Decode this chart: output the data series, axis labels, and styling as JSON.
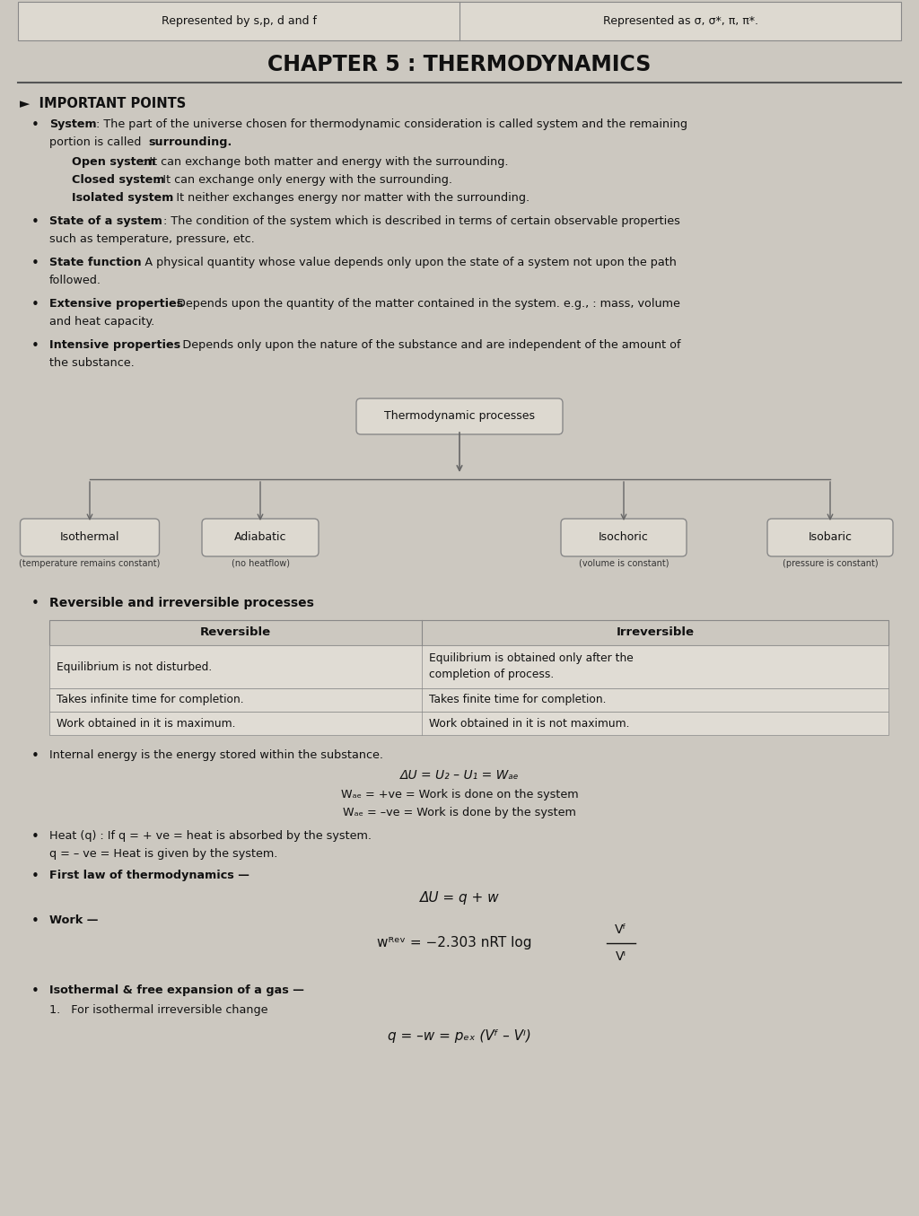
{
  "bg_color": "#ccc8c0",
  "page_bg": "#e8e4dc",
  "text_color": "#111111",
  "title": "CHAPTER 5 : THERMODYNAMICS",
  "header_table": {
    "col1": "Represented by s,p, d and f",
    "col2": "Represented as σ, σ*, π, π*."
  },
  "section_header": "IMPORTANT POINTS",
  "flow_diagram": {
    "title": "Thermodynamic processes",
    "nodes": [
      "Isothermal",
      "Adiabatic",
      "Isochoric",
      "Isobaric"
    ],
    "subtitles": [
      "(temperature remains constant)",
      "(no heatflow)",
      "(volume is constant)",
      "(pressure is constant)"
    ]
  },
  "table_data": {
    "headers": [
      "Reversible",
      "Irreversible"
    ],
    "rows": [
      [
        "Equilibrium is not disturbed.",
        "Equilibrium is obtained only after the\ncompletion of process."
      ],
      [
        "Takes infinite time for completion.",
        "Takes finite time for completion."
      ],
      [
        "Work obtained in it is maximum.",
        "Work obtained in it is not maximum."
      ]
    ]
  }
}
